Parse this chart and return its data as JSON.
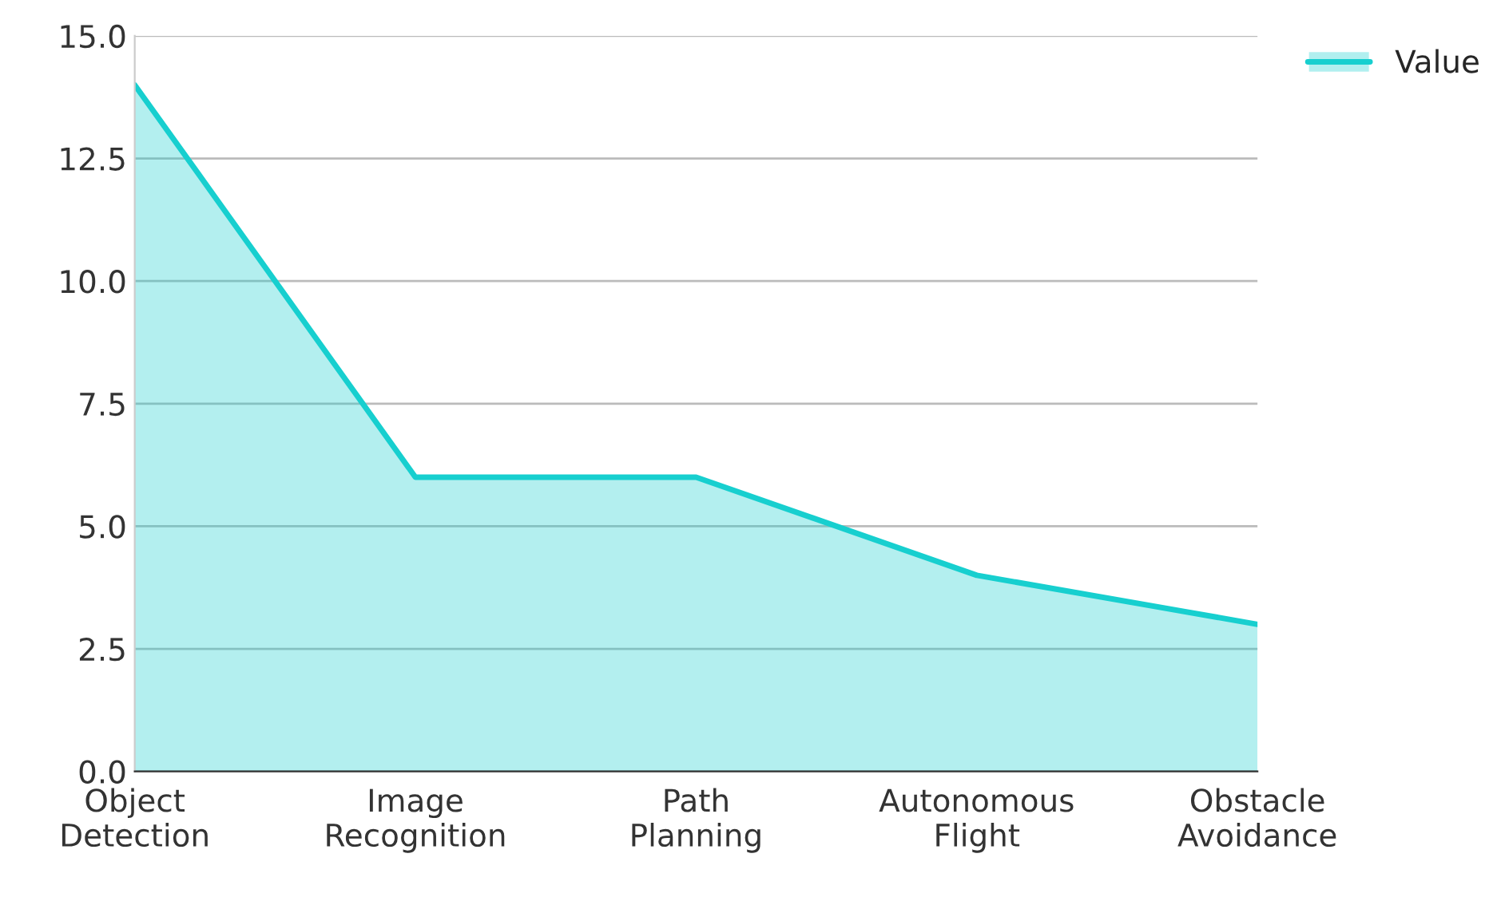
{
  "chart_data": {
    "type": "area",
    "categories": [
      "Object\nDetection",
      "Image\nRecognition",
      "Path\nPlanning",
      "Autonomous\nFlight",
      "Obstacle\nAvoidance"
    ],
    "series": [
      {
        "name": "Value",
        "color": "#17cfcf",
        "values": [
          14,
          6,
          6,
          4,
          3
        ]
      }
    ],
    "ylim": [
      0,
      15
    ],
    "yticks": [
      {
        "value": 0,
        "label": "0.0"
      },
      {
        "value": 2.5,
        "label": "2.5"
      },
      {
        "value": 5,
        "label": "5.0"
      },
      {
        "value": 7.5,
        "label": "7.5"
      },
      {
        "value": 10,
        "label": "10.0"
      },
      {
        "value": 12.5,
        "label": "12.5"
      },
      {
        "value": 15,
        "label": "15.0"
      }
    ],
    "grid": "y",
    "legend": "top right"
  }
}
